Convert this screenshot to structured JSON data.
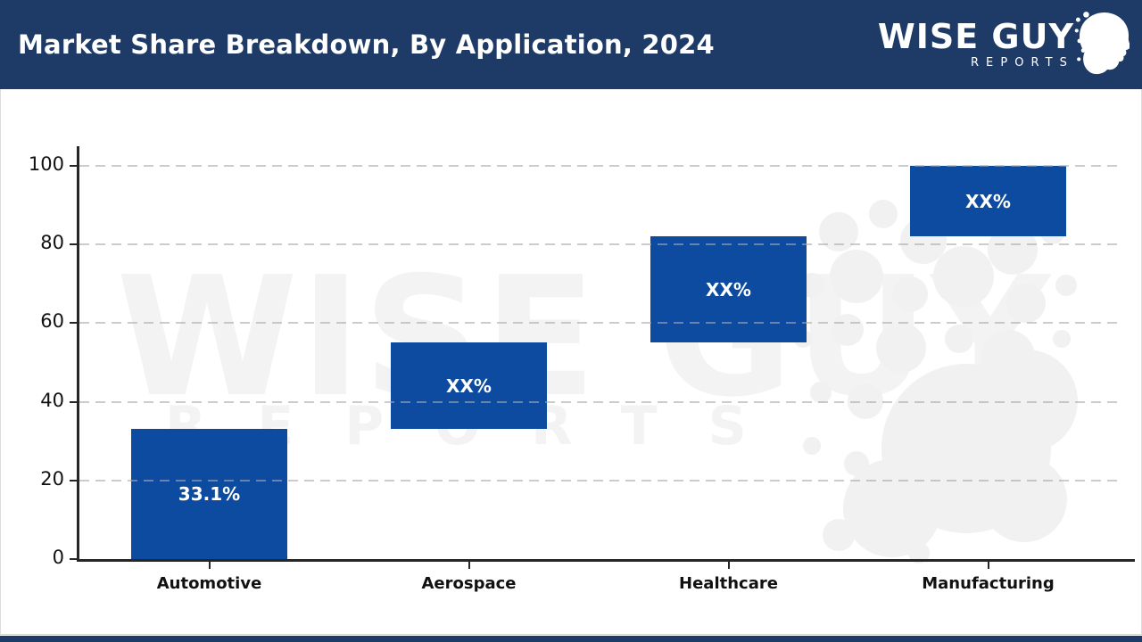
{
  "header": {
    "title": "Market Share Breakdown, By Application, 2024",
    "logo": {
      "line1": "WISE GUY",
      "line2": "REPORTS"
    }
  },
  "watermark": {
    "line1": "WISE GUY",
    "line2": "REPORTS"
  },
  "colors": {
    "header_bg": "#1e3a67",
    "bar": "#0d4ba1",
    "bar_label": "#ffffff",
    "axis": "#262626",
    "grid": "#d2d2d2",
    "watermark": "#f3f3f3"
  },
  "chart_data": {
    "type": "bar",
    "subtype": "waterfall",
    "title": "Market Share Breakdown, By Application, 2024",
    "categories": [
      "Automotive",
      "Aerospace",
      "Healthcare",
      "Manufacturing"
    ],
    "segments": [
      {
        "category": "Automotive",
        "start": 0,
        "end": 33.1,
        "value_label": "33.1%"
      },
      {
        "category": "Aerospace",
        "start": 33.1,
        "end": 55,
        "value_label": "XX%"
      },
      {
        "category": "Healthcare",
        "start": 55,
        "end": 82,
        "value_label": "XX%"
      },
      {
        "category": "Manufacturing",
        "start": 82,
        "end": 100,
        "value_label": "XX%"
      }
    ],
    "xlabel": "",
    "ylabel": "",
    "ylim": [
      0,
      105
    ],
    "yticks": [
      0,
      20,
      40,
      60,
      80,
      100
    ],
    "grid": "horizontal-dashed",
    "legend": "none"
  }
}
